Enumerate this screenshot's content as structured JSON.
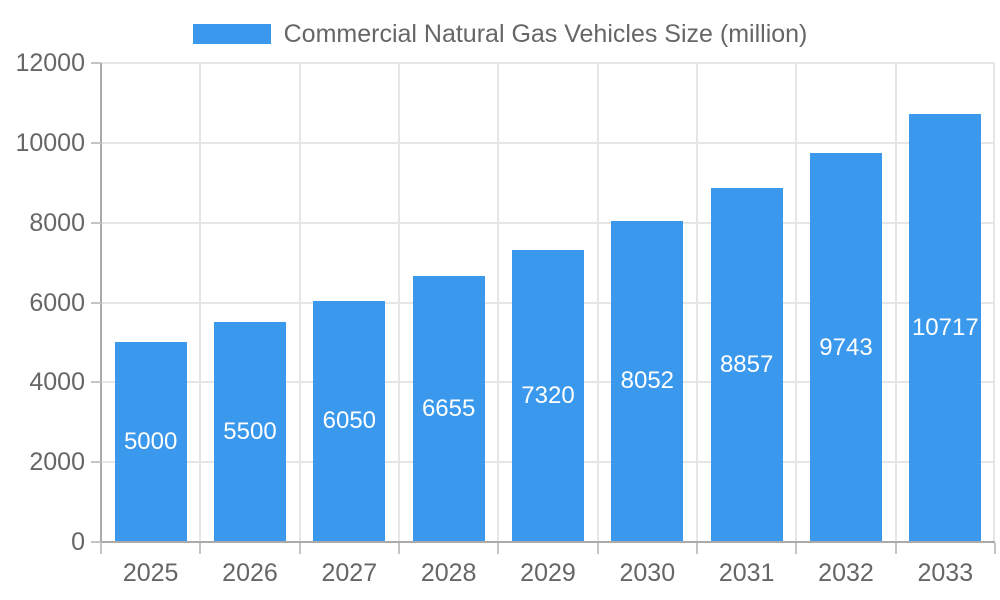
{
  "chart_data": {
    "type": "bar",
    "title": "",
    "categories": [
      "2025",
      "2026",
      "2027",
      "2028",
      "2029",
      "2030",
      "2031",
      "2032",
      "2033"
    ],
    "series": [
      {
        "name": "Commercial Natural Gas Vehicles Size (million)",
        "values": [
          5000,
          5500,
          6050,
          6655,
          7320,
          8052,
          8857,
          9743,
          10717
        ]
      }
    ],
    "xlabel": "",
    "ylabel": "",
    "ylim": [
      0,
      12000
    ],
    "y_ticks": [
      0,
      2000,
      4000,
      6000,
      8000,
      10000,
      12000
    ],
    "grid": true,
    "legend_position": "top",
    "data_labels_shown": true,
    "colors": {
      "bar": "#3B99ED",
      "value_label": "#FFFFFF",
      "axis_text": "#666666",
      "grid": "#E6E6E6",
      "axis_line": "#AAAAAA",
      "tick": "#C4C4C4",
      "background": "#FFFFFF"
    }
  }
}
